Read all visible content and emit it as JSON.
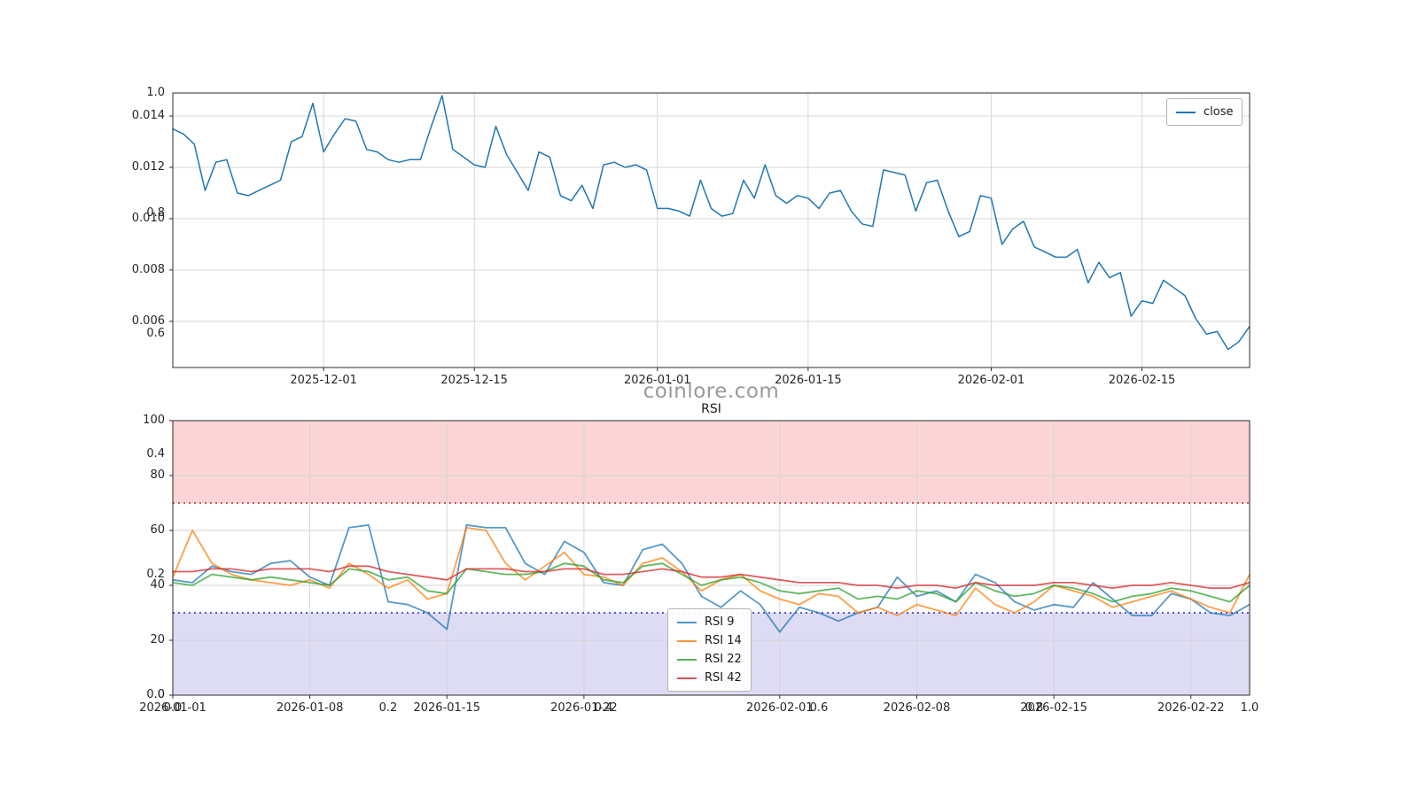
{
  "watermark": "coinlore.com",
  "overlay_axis": {
    "x_tick_labels": [
      "0.0",
      "0.2",
      "0.4",
      "0.6",
      "0.8",
      "1.0"
    ],
    "y_tick_labels": [
      "1.0",
      "0.8",
      "0.6",
      "0.4",
      "0.2",
      "0.0"
    ]
  },
  "chart_data": [
    {
      "type": "line",
      "title": "",
      "x_range": [
        "2025-11-17",
        "2026-02-25"
      ],
      "x_total_days": 100,
      "x_tick_labels": [
        "2025-12-01",
        "2025-12-15",
        "2026-01-01",
        "2026-01-15",
        "2026-02-01",
        "2026-02-15"
      ],
      "x_tick_days": [
        14,
        28,
        45,
        59,
        76,
        90
      ],
      "y_ticks": [
        0.006,
        0.008,
        0.01,
        0.012,
        0.014
      ],
      "y_tick_labels": [
        "0.006",
        "0.008",
        "0.010",
        "0.012",
        "0.014"
      ],
      "ylim": [
        0.0042,
        0.0149
      ],
      "grid": true,
      "legend_position": "upper right",
      "series": [
        {
          "name": "close",
          "color": "#1f77b4",
          "opacity": 1,
          "width": 1.5,
          "values": [
            0.0135,
            0.0133,
            0.0129,
            0.0111,
            0.0122,
            0.0123,
            0.011,
            0.0109,
            0.0111,
            0.0113,
            0.0115,
            0.013,
            0.0132,
            0.0145,
            0.0126,
            0.0133,
            0.0139,
            0.0138,
            0.0127,
            0.0126,
            0.0123,
            0.0122,
            0.0123,
            0.0123,
            0.0136,
            0.0148,
            0.0127,
            0.0124,
            0.0121,
            0.012,
            0.0136,
            0.0125,
            0.0118,
            0.0111,
            0.0126,
            0.0124,
            0.0109,
            0.0107,
            0.0113,
            0.0104,
            0.0121,
            0.0122,
            0.012,
            0.0121,
            0.0119,
            0.0104,
            0.0104,
            0.0103,
            0.0101,
            0.0115,
            0.0104,
            0.0101,
            0.0102,
            0.0115,
            0.0108,
            0.0121,
            0.0109,
            0.0106,
            0.0109,
            0.0108,
            0.0104,
            0.011,
            0.0111,
            0.0103,
            0.0098,
            0.0097,
            0.0119,
            0.0118,
            0.0117,
            0.0103,
            0.0114,
            0.0115,
            0.0103,
            0.0093,
            0.0095,
            0.0109,
            0.0108,
            0.009,
            0.0096,
            0.0099,
            0.0089,
            0.0087,
            0.0085,
            0.0085,
            0.0088,
            0.0075,
            0.0083,
            0.0077,
            0.0079,
            0.0062,
            0.0068,
            0.0067,
            0.0076,
            0.0073,
            0.007,
            0.0061,
            0.0055,
            0.0056,
            0.0049,
            0.0052,
            0.0058
          ]
        }
      ]
    },
    {
      "type": "line",
      "title": "RSI",
      "x_range": [
        "2026-01-01",
        "2026-02-25"
      ],
      "x_total_days": 55,
      "x_tick_labels": [
        "2026-01-01",
        "2026-01-08",
        "2026-01-15",
        "2026-01-22",
        "2026-02-01",
        "2026-02-08",
        "2026-02-15",
        "2026-02-22"
      ],
      "x_tick_days": [
        0,
        7,
        14,
        21,
        31,
        38,
        45,
        52
      ],
      "y_ticks": [
        0,
        20,
        40,
        60,
        80,
        100
      ],
      "y_tick_labels": [
        "0",
        "20",
        "40",
        "60",
        "80",
        "100"
      ],
      "ylim": [
        0,
        100
      ],
      "grid": true,
      "legend_position": "lower center",
      "bands": [
        {
          "from": 70,
          "to": 100,
          "color": "#fbd5d5",
          "meaning": "overbought"
        },
        {
          "from": 0,
          "to": 30,
          "color": "#dedcf5",
          "meaning": "oversold"
        }
      ],
      "hlines": [
        {
          "y": 70,
          "color": "#cc2222",
          "style": "dotted"
        },
        {
          "y": 30,
          "color": "#2222cc",
          "style": "dotted"
        }
      ],
      "series": [
        {
          "name": "RSI 9",
          "color": "#1f77b4",
          "opacity": 0.75,
          "width": 1.8,
          "values": [
            42,
            41,
            47,
            45,
            44,
            48,
            49,
            43,
            40,
            61,
            62,
            34,
            33,
            30,
            24,
            62,
            61,
            61,
            48,
            44,
            56,
            52,
            41,
            40,
            53,
            55,
            48,
            36,
            32,
            38,
            33,
            23,
            32,
            30,
            27,
            30,
            32,
            43,
            36,
            38,
            34,
            44,
            41,
            34,
            31,
            33,
            32,
            41,
            35,
            29,
            29,
            37,
            35,
            30,
            29,
            33
          ]
        },
        {
          "name": "RSI 14",
          "color": "#ff7f0e",
          "opacity": 0.75,
          "width": 1.8,
          "values": [
            43,
            60,
            48,
            44,
            42,
            41,
            40,
            42,
            39,
            48,
            44,
            39,
            42,
            35,
            37,
            61,
            60,
            48,
            42,
            47,
            52,
            44,
            43,
            40,
            48,
            50,
            45,
            38,
            42,
            44,
            38,
            35,
            33,
            37,
            36,
            30,
            32,
            29,
            33,
            31,
            29,
            39,
            33,
            30,
            34,
            40,
            38,
            36,
            32,
            34,
            36,
            38,
            35,
            32,
            30,
            44
          ]
        },
        {
          "name": "RSI 22",
          "color": "#2ca02c",
          "opacity": 0.75,
          "width": 1.8,
          "values": [
            41,
            40,
            44,
            43,
            42,
            43,
            42,
            41,
            40,
            46,
            45,
            42,
            43,
            38,
            37,
            46,
            45,
            44,
            44,
            45,
            48,
            47,
            42,
            41,
            47,
            48,
            44,
            40,
            42,
            43,
            41,
            38,
            37,
            38,
            39,
            35,
            36,
            35,
            38,
            37,
            34,
            41,
            38,
            36,
            37,
            40,
            39,
            37,
            34,
            36,
            37,
            39,
            38,
            36,
            34,
            40
          ]
        },
        {
          "name": "RSI 42",
          "color": "#d62728",
          "opacity": 0.75,
          "width": 1.8,
          "values": [
            45,
            45,
            46,
            46,
            45,
            46,
            46,
            46,
            45,
            47,
            47,
            45,
            44,
            43,
            42,
            46,
            46,
            46,
            45,
            45,
            46,
            46,
            44,
            44,
            45,
            46,
            45,
            43,
            43,
            44,
            43,
            42,
            41,
            41,
            41,
            40,
            40,
            39,
            40,
            40,
            39,
            41,
            40,
            40,
            40,
            41,
            41,
            40,
            39,
            40,
            40,
            41,
            40,
            39,
            39,
            41
          ]
        }
      ]
    }
  ]
}
